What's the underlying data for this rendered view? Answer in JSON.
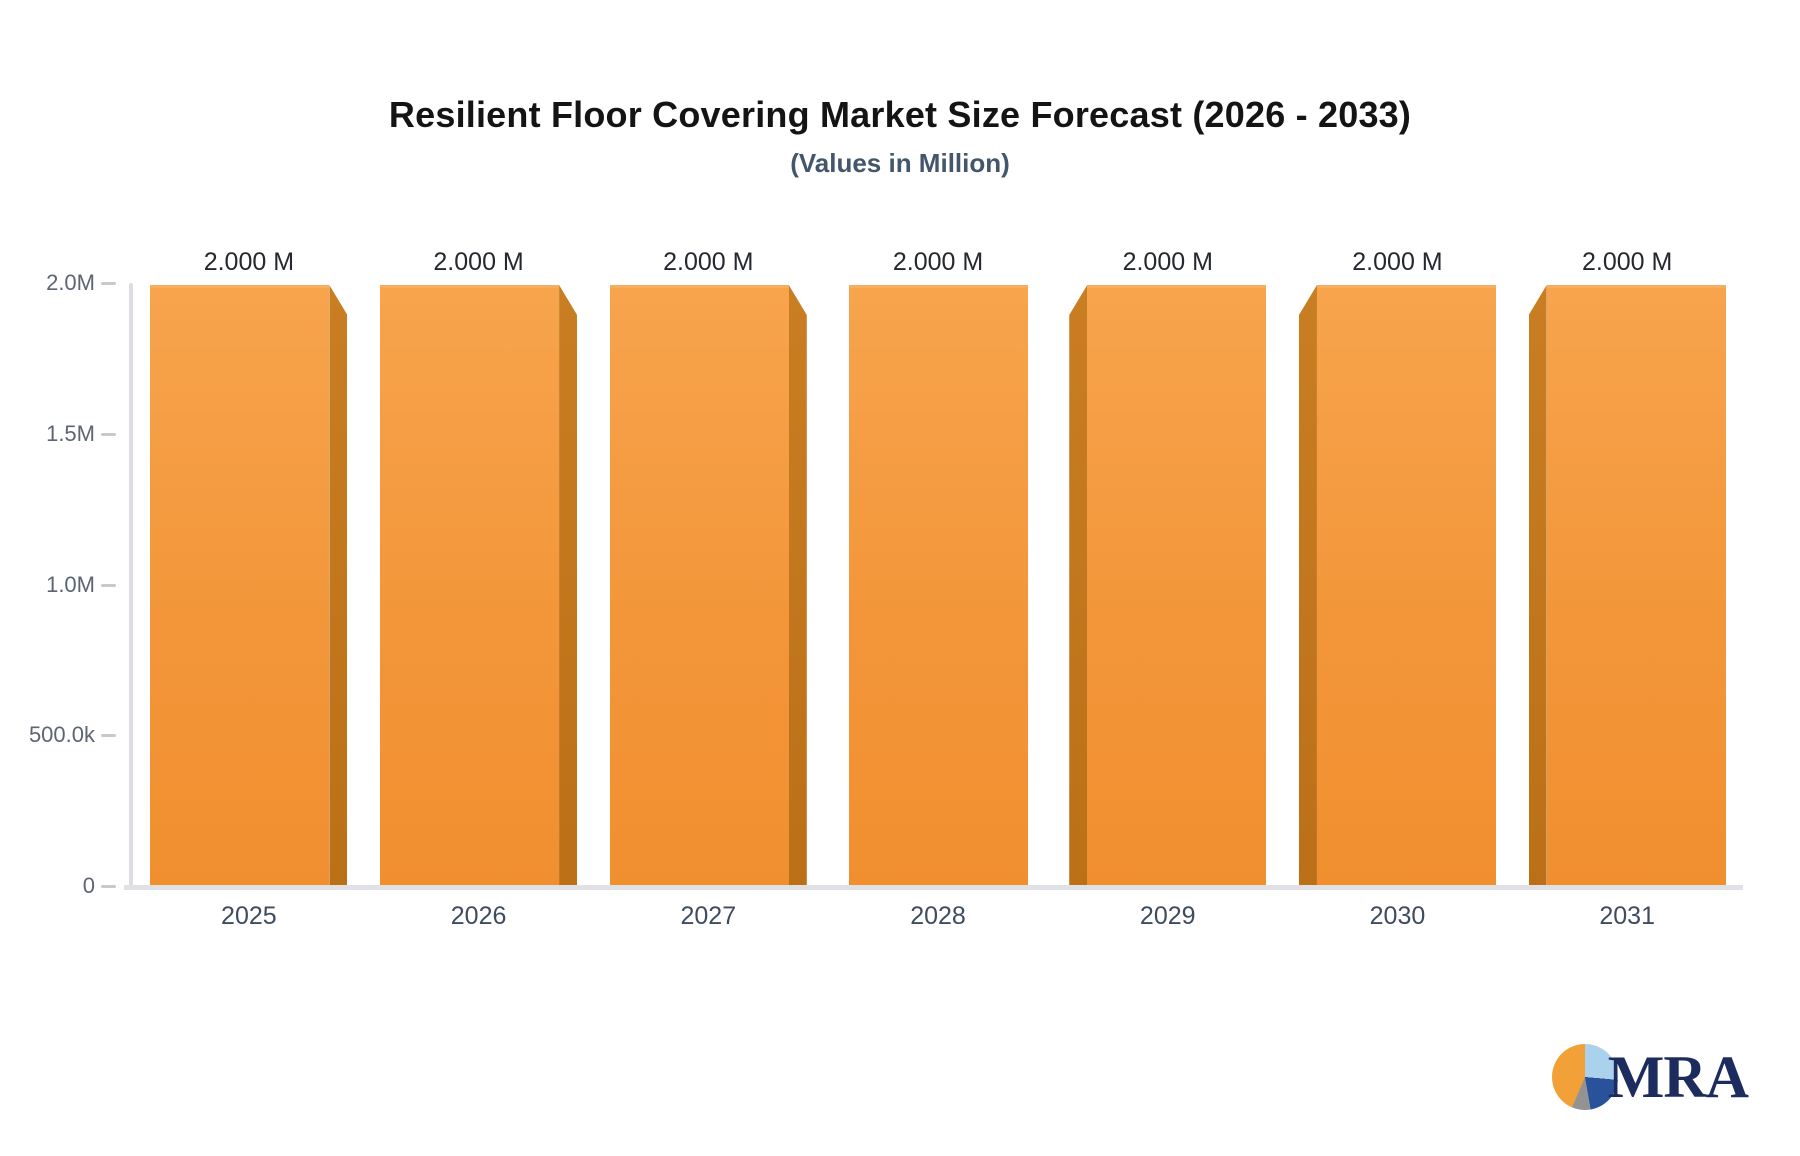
{
  "header": {
    "title": "Resilient Floor Covering Market Size Forecast (2026 - 2033)",
    "subtitle": "(Values in Million)"
  },
  "chart_data": {
    "type": "bar",
    "title": "Resilient Floor Covering Market Size Forecast (2026 - 2033)",
    "subtitle": "(Values in Million)",
    "categories": [
      "2025",
      "2026",
      "2027",
      "2028",
      "2029",
      "2030",
      "2031"
    ],
    "values": [
      2000000,
      2000000,
      2000000,
      2000000,
      2000000,
      2000000,
      2000000
    ],
    "value_labels": [
      "2.000 M",
      "2.000 M",
      "2.000 M",
      "2.000 M",
      "2.000 M",
      "2.000 M",
      "2.000 M"
    ],
    "units": "Million",
    "xlabel": "",
    "ylabel": "",
    "y_axis": {
      "min": 0,
      "max": 2000000,
      "ticks": [
        "2.0M",
        "1.5M",
        "1.0M",
        "500.0k",
        "0"
      ]
    },
    "grid": false,
    "legend": false,
    "bar_face_color": "#F59B3C",
    "bar_side_color": "#C0761D"
  },
  "logo": {
    "text": "MRA",
    "text_color": "#1D2C5F",
    "pie_colors": {
      "orange": "#F2A139",
      "light_blue": "#ABD2EC",
      "dark_blue": "#2A529B",
      "gray": "#939393"
    }
  }
}
